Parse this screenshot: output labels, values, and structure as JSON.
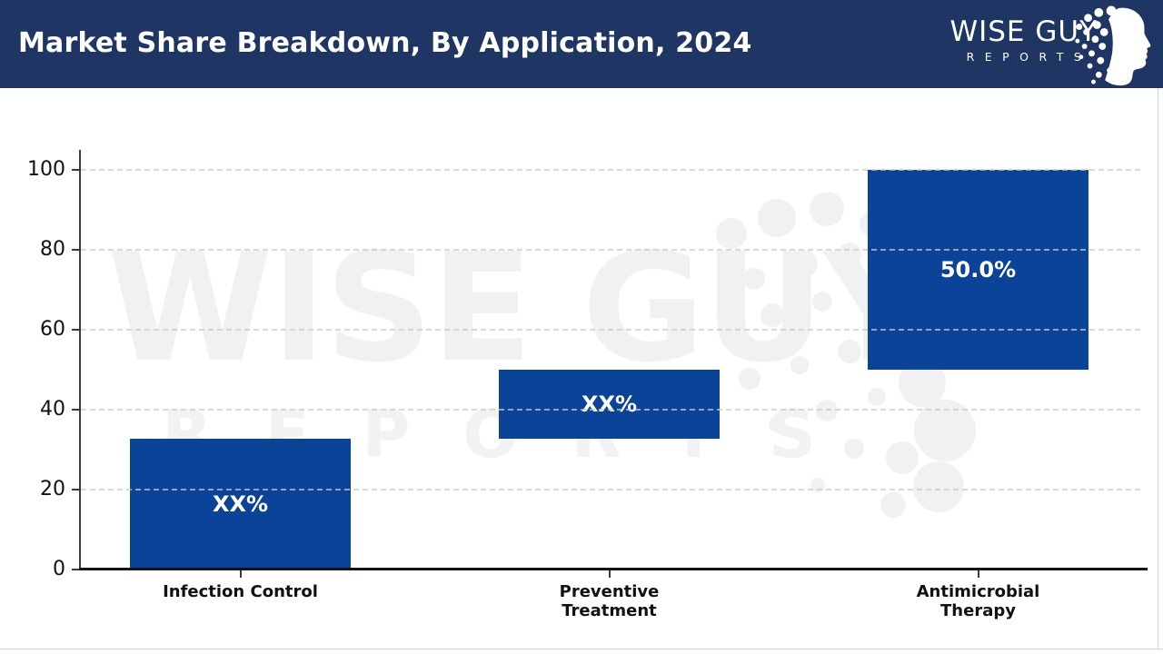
{
  "header": {
    "title": "Market Share Breakdown, By Application, 2024",
    "logo": {
      "wordmark": "WISE GUY",
      "reports": "REPORTS",
      "face_icon": "dotted-face-profile"
    }
  },
  "watermark": {
    "wordmark": "WISE GUY",
    "reports": "REPORTS"
  },
  "chart_data": {
    "type": "bar",
    "subtype": "floating-segment-waterfall",
    "title": "Market Share Breakdown, By Application, 2024",
    "categories": [
      "Infection Control",
      "Preventive\nTreatment",
      "Antimicrobial\nTherapy"
    ],
    "bars": [
      {
        "category": "Infection Control",
        "label": "XX%",
        "start": 0,
        "end": 32.7
      },
      {
        "category": "Preventive\nTreatment",
        "label": "XX%",
        "start": 32.7,
        "end": 50
      },
      {
        "category": "Antimicrobial\nTherapy",
        "label": "50.0%",
        "start": 50,
        "end": 100
      }
    ],
    "yticks": [
      0,
      20,
      40,
      60,
      80,
      100
    ],
    "ylim": [
      0,
      105
    ],
    "xlabel": "",
    "ylabel": "",
    "grid": "dashed-horizontal",
    "legend": "none",
    "colors": {
      "bar": "#0a4397",
      "header_bg": "#1f3564",
      "grid": "#c9c9c9",
      "axis": "#1a1a1a",
      "bar_label": "#ffffff",
      "tick_label": "#111111"
    }
  }
}
